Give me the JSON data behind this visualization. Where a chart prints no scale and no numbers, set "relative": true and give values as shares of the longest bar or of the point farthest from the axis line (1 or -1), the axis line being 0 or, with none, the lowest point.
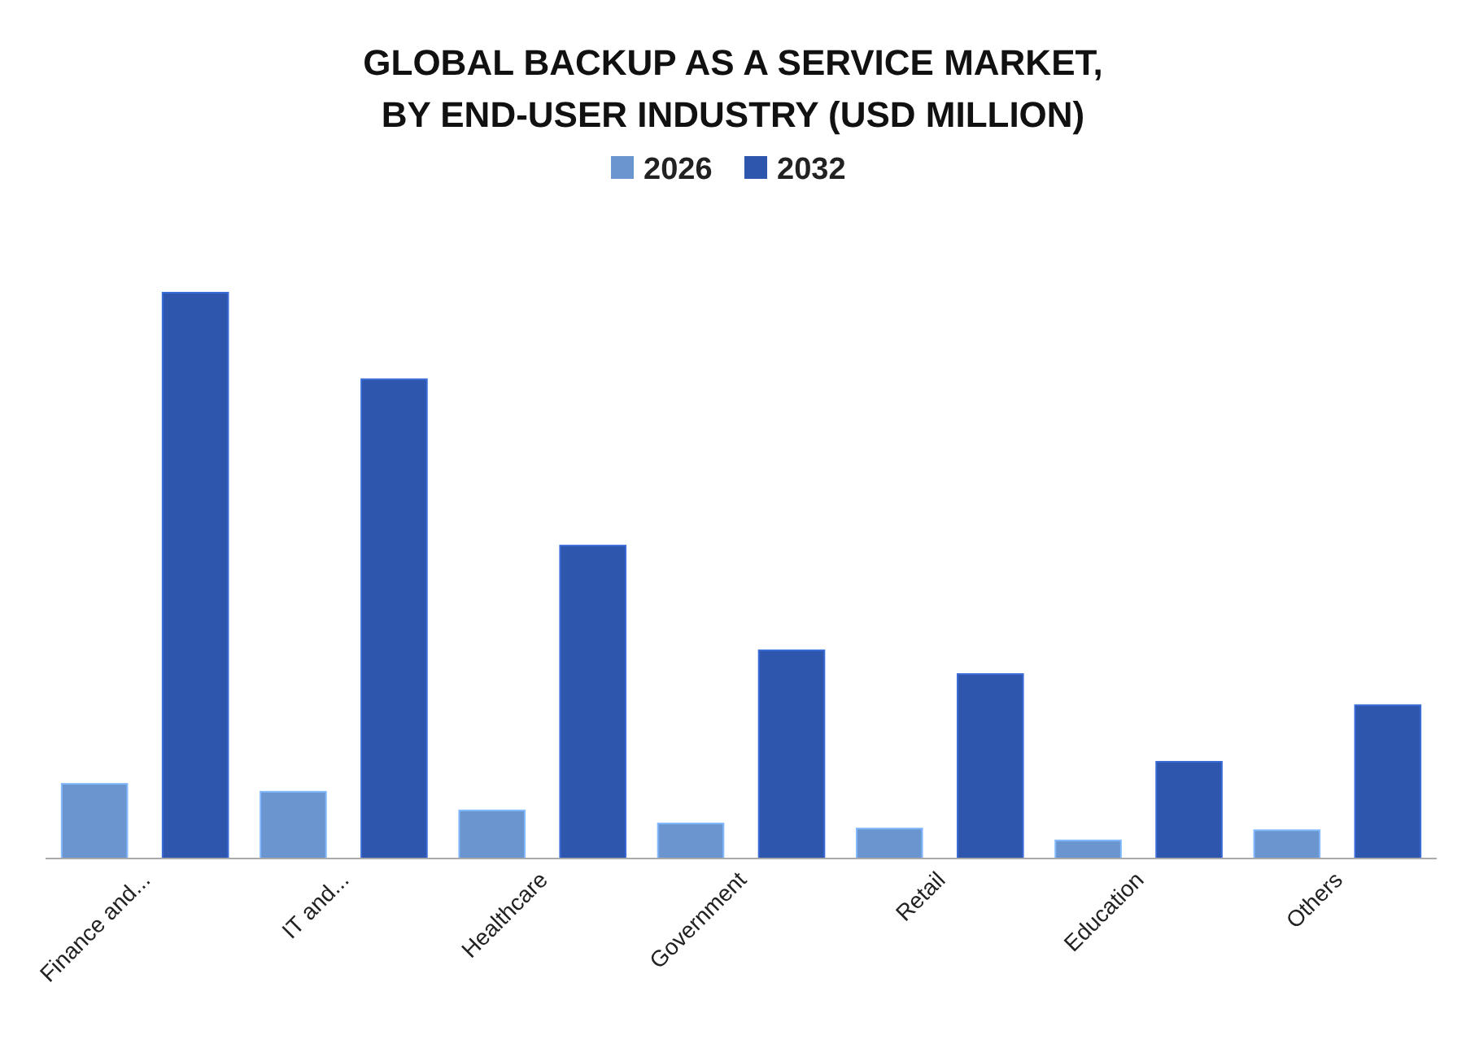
{
  "chart_data": {
    "type": "bar",
    "title": "GLOBAL BACKUP AS A SERVICE MARKET,\nBY END-USER INDUSTRY (USD MILLION)",
    "categories": [
      "Finance and...",
      "IT and...",
      "Healthcare",
      "Government",
      "Retail",
      "Education",
      "Others"
    ],
    "series": [
      {
        "name": "2026",
        "color": "#6a95cf",
        "values": [
          0.132,
          0.118,
          0.085,
          0.062,
          0.053,
          0.032,
          0.05
        ]
      },
      {
        "name": "2032",
        "color": "#2f56ad",
        "values": [
          1,
          0.847,
          0.553,
          0.368,
          0.326,
          0.171,
          0.271
        ]
      }
    ],
    "relative": true,
    "legend": "top"
  }
}
